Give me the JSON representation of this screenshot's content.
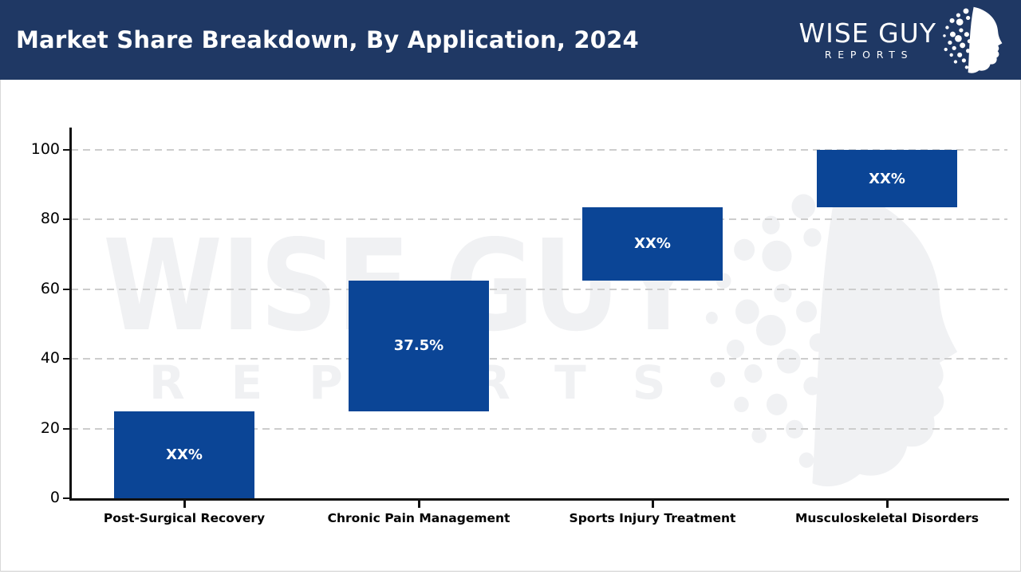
{
  "header": {
    "title": "Market Share Breakdown, By Application, 2024",
    "logo": {
      "brand": "WISE GUY",
      "sub": "REPORTS"
    }
  },
  "watermark": {
    "brand": "WISE GUY",
    "sub": "REPORTS"
  },
  "colors": {
    "header_bg": "#1f3864",
    "bar": "#0b4596",
    "bar_label": "#ffffff",
    "grid": "#cdcdcd",
    "axis": "#111111",
    "watermark": "#f0f1f3"
  },
  "chart_data": {
    "type": "bar",
    "subtype": "waterfall-percentage",
    "title": "Market Share Breakdown, By Application, 2024",
    "categories": [
      "Post-Surgical Recovery",
      "Chronic Pain Management",
      "Sports Injury Treatment",
      "Musculoskeletal Disorders"
    ],
    "segments": [
      {
        "category": "Post-Surgical Recovery",
        "start": 0,
        "end": 25,
        "label": "XX%"
      },
      {
        "category": "Chronic Pain Management",
        "start": 25,
        "end": 62.5,
        "label": "37.5%"
      },
      {
        "category": "Sports Injury Treatment",
        "start": 62.5,
        "end": 83.5,
        "label": "XX%"
      },
      {
        "category": "Musculoskeletal Disorders",
        "start": 83.5,
        "end": 100,
        "label": "XX%"
      }
    ],
    "yticks": [
      0,
      20,
      40,
      60,
      80,
      100
    ],
    "ylim": [
      0,
      100
    ],
    "xlabel": "",
    "ylabel": "",
    "grid": "horizontal-dashed",
    "legend": false,
    "bar_color": "#0b4596",
    "bar_label_color": "#ffffff"
  }
}
